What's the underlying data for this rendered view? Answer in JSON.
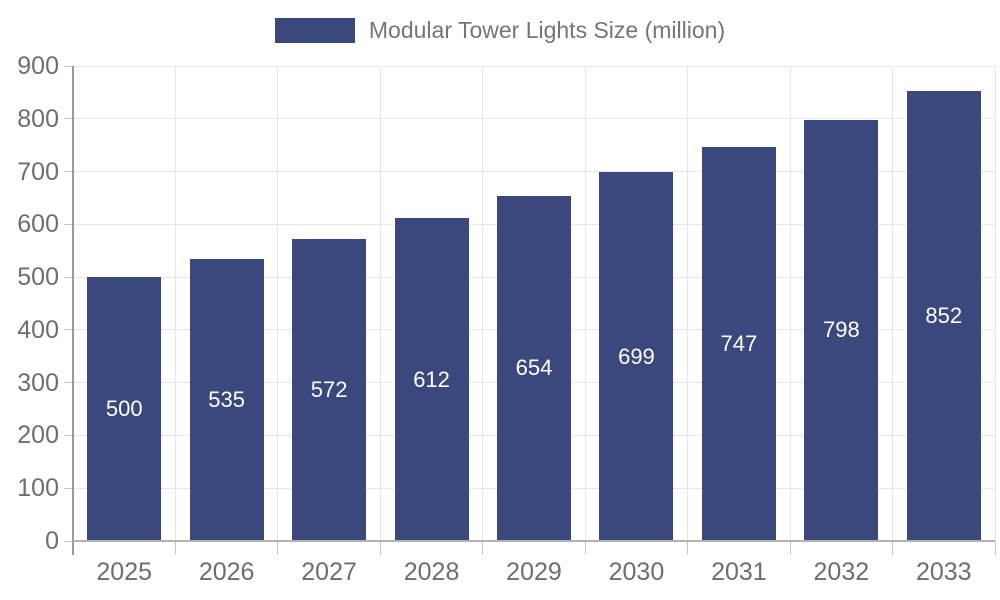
{
  "chart_data": {
    "type": "bar",
    "title": "Modular Tower Lights Size (million)",
    "categories": [
      "2025",
      "2026",
      "2027",
      "2028",
      "2029",
      "2030",
      "2031",
      "2032",
      "2033"
    ],
    "values": [
      500,
      535,
      572,
      612,
      654,
      699,
      747,
      798,
      852
    ],
    "xlabel": "",
    "ylabel": "",
    "ylim": [
      0,
      900
    ],
    "ytick_step": 100,
    "grid": true,
    "legend": {
      "label": "Modular Tower Lights Size (million)",
      "position": "top"
    },
    "colors": {
      "bar": "#3A487D",
      "value_label": "#ffffff",
      "axis_text": "#6e6e6e",
      "legend_text": "#757575",
      "grid_line": "#e6e6e6",
      "y_axis_line": "#999999",
      "x_axis_line": "#b3b3b3",
      "tick": "#c6c6c6",
      "background": "#ffffff"
    }
  }
}
